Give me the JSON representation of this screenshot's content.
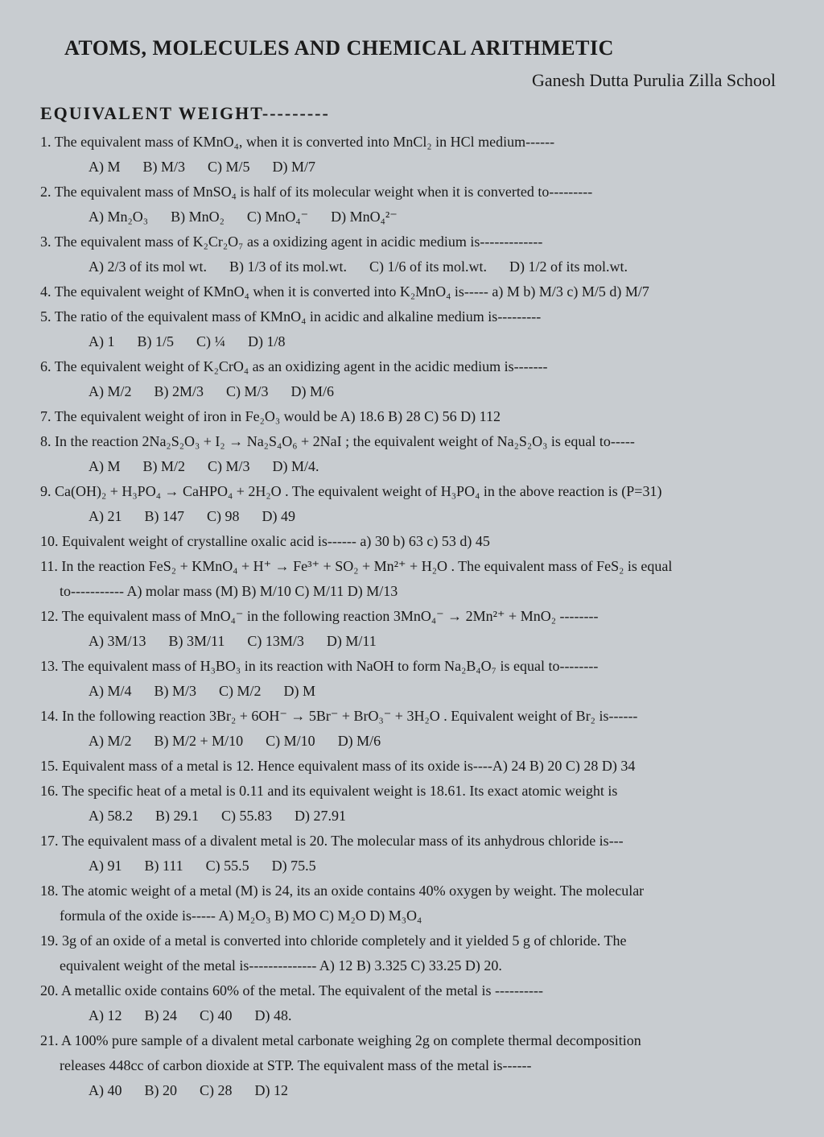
{
  "title": "ATOMS, MOLECULES AND CHEMICAL ARITHMETIC",
  "school": "Ganesh Dutta Purulia Zilla School",
  "section": "EQUIVALENT WEIGHT---------",
  "questions": [
    {
      "n": "1.",
      "text": "The equivalent mass of KMnO₄, when it is converted into MnCl₂ in HCl medium------",
      "opts": [
        "A) M",
        "B) M/3",
        "C) M/5",
        "D) M/7"
      ]
    },
    {
      "n": "2.",
      "text": "The equivalent mass of MnSO₄ is half of its molecular weight when it is converted to---------",
      "opts": [
        "A) Mn₂O₃",
        "B) MnO₂",
        "C) MnO₄⁻",
        "D) MnO₄²⁻"
      ]
    },
    {
      "n": "3.",
      "text": "The equivalent mass of K₂Cr₂O₇ as a oxidizing agent in acidic medium is-------------",
      "opts": [
        "A) 2/3 of its mol wt.",
        "B) 1/3 of its mol.wt.",
        "C) 1/6 of its mol.wt.",
        "D) 1/2 of its mol.wt."
      ]
    },
    {
      "n": "4.",
      "text": "The equivalent weight of KMnO₄ when it is converted into K₂MnO₄ is----- a) M  b) M/3  c) M/5  d) M/7",
      "opts": []
    },
    {
      "n": "5.",
      "text": "The ratio of the equivalent mass of KMnO₄ in acidic and alkaline medium is---------",
      "opts": [
        "A) 1",
        "B) 1/5",
        "C) ¼",
        "D) 1/8"
      ]
    },
    {
      "n": "6.",
      "text": "The equivalent weight of K₂CrO₄ as an oxidizing agent in the acidic medium is-------",
      "opts": [
        "A) M/2",
        "B) 2M/3",
        "C) M/3",
        "D) M/6"
      ]
    },
    {
      "n": "7.",
      "text": "The equivalent weight of iron in Fe₂O₃ would be  A) 18.6  B) 28  C) 56  D) 112",
      "opts": []
    },
    {
      "n": "8.",
      "text": "In the reaction  2Na₂S₂O₃ + I₂ → Na₂S₄O₆ + 2NaI ;  the equivalent weight of Na₂S₂O₃ is equal to-----",
      "opts": [
        "A) M",
        "B) M/2",
        "C) M/3",
        "D) M/4."
      ]
    },
    {
      "n": "9.",
      "text": "Ca(OH)₂ + H₃PO₄ → CaHPO₄ + 2H₂O . The equivalent weight of H₃PO₄ in the above reaction is (P=31)",
      "opts": [
        "A) 21",
        "B) 147",
        "C) 98",
        "D) 49"
      ]
    },
    {
      "n": "10.",
      "text": "Equivalent weight of crystalline oxalic acid is------   a) 30    b) 63    c) 53    d) 45",
      "opts": []
    },
    {
      "n": "11.",
      "text": "In the reaction FeS₂ + KMnO₄ + H⁺ → Fe³⁺ + SO₂ + Mn²⁺ + H₂O . The equivalent mass of FeS₂ is equal",
      "trail": "to-----------   A) molar mass (M)     B) M/10     C) M/11     D) M/13",
      "opts": []
    },
    {
      "n": "12.",
      "text": "The equivalent mass of MnO₄⁻ in the following reaction 3MnO₄⁻ → 2Mn²⁺ + MnO₂ --------",
      "opts": [
        "A) 3M/13",
        "B) 3M/11",
        "C) 13M/3",
        "D) M/11"
      ]
    },
    {
      "n": "13.",
      "text": "The equivalent mass of H₃BO₃ in its reaction with NaOH to form Na₂B₄O₇ is equal to--------",
      "opts": [
        "A) M/4",
        "B) M/3",
        "C) M/2",
        "D) M"
      ]
    },
    {
      "n": "14.",
      "text": "In the following reaction 3Br₂ + 6OH⁻ → 5Br⁻ + BrO₃⁻ + 3H₂O . Equivalent weight of Br₂ is------",
      "opts": [
        "A) M/2",
        "B) M/2 + M/10",
        "C) M/10",
        "D) M/6"
      ]
    },
    {
      "n": "15.",
      "text": "Equivalent mass of a metal is 12. Hence equivalent mass of its oxide is----A) 24  B) 20  C) 28  D) 34",
      "opts": []
    },
    {
      "n": "16.",
      "text": "The specific heat of a metal is 0.11 and its equivalent weight is 18.61. Its exact atomic weight is",
      "opts": [
        "A) 58.2",
        "B) 29.1",
        "C) 55.83",
        "D) 27.91"
      ]
    },
    {
      "n": "17.",
      "text": "The equivalent mass of a divalent metal is 20. The molecular mass of its anhydrous chloride is---",
      "opts": [
        "A) 91",
        "B) 111",
        "C) 55.5",
        "D) 75.5"
      ]
    },
    {
      "n": "18.",
      "text": "The atomic weight of a metal (M) is 24, its an oxide contains 40% oxygen by weight. The molecular",
      "trail": "formula of the oxide is-----   A) M₂O₃     B) MO     C) M₂O     D) M₃O₄",
      "opts": []
    },
    {
      "n": "19.",
      "text": "3g of an oxide of a metal is converted into chloride completely and it yielded 5 g of chloride. The",
      "trail": "equivalent weight of the metal is--------------   A) 12     B) 3.325     C) 33.25     D) 20.",
      "opts": []
    },
    {
      "n": "20.",
      "text": "A metallic oxide contains 60% of the metal. The equivalent of the metal is ----------",
      "opts": [
        "A) 12",
        "B) 24",
        "C) 40",
        "D) 48."
      ]
    },
    {
      "n": "21.",
      "text": "A 100% pure sample of a divalent metal carbonate weighing 2g on complete thermal decomposition",
      "trail": "releases 448cc of carbon dioxide at STP. The equivalent mass of the metal is------",
      "opts": [
        "A) 40",
        "B) 20",
        "C) 28",
        "D) 12"
      ]
    }
  ]
}
